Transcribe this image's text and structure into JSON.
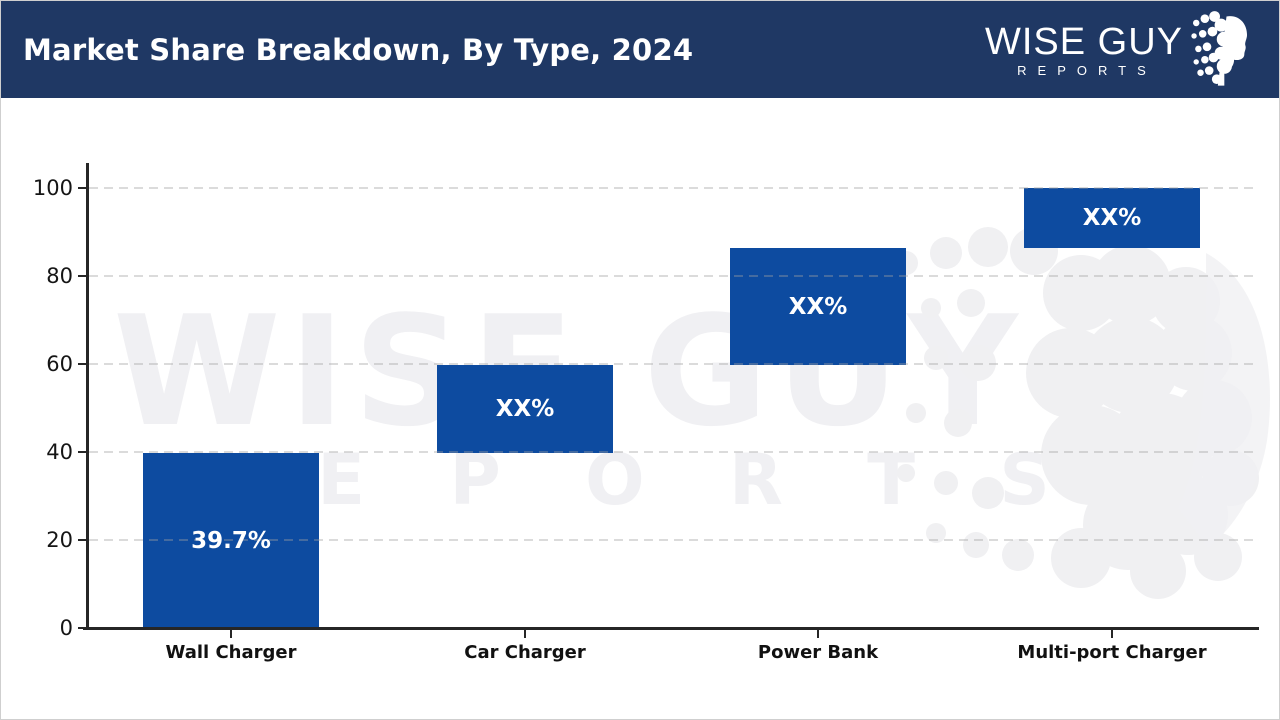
{
  "header": {
    "title": "Market Share Breakdown, By Type, 2024",
    "bg_color": "#1f3864",
    "logo": {
      "line1": "WISE GUY",
      "line2": "REPORTS"
    }
  },
  "watermark": {
    "line1": "WISE GUY",
    "line2": "R E P O R T S"
  },
  "chart_data": {
    "type": "bar",
    "variant": "waterfall",
    "title": "Market Share Breakdown, By Type, 2024",
    "categories": [
      "Wall Charger",
      "Car Charger",
      "Power Bank",
      "Multi-port Charger"
    ],
    "bars": [
      {
        "category": "Wall Charger",
        "start": 0,
        "end": 39.7,
        "label": "39.7%"
      },
      {
        "category": "Car Charger",
        "start": 39.7,
        "end": 59.7,
        "label": "XX%"
      },
      {
        "category": "Power Bank",
        "start": 59.7,
        "end": 86.3,
        "label": "XX%"
      },
      {
        "category": "Multi-port Charger",
        "start": 86.3,
        "end": 100,
        "label": "XX%"
      }
    ],
    "yticks": [
      0,
      20,
      40,
      60,
      80,
      100
    ],
    "ylim": [
      0,
      106
    ],
    "xlabel": "",
    "ylabel": "",
    "bar_color": "#0d4ba0",
    "bar_label_color": "#ffffff",
    "grid": {
      "axis": "y",
      "style": "dashed"
    },
    "legend": null
  }
}
